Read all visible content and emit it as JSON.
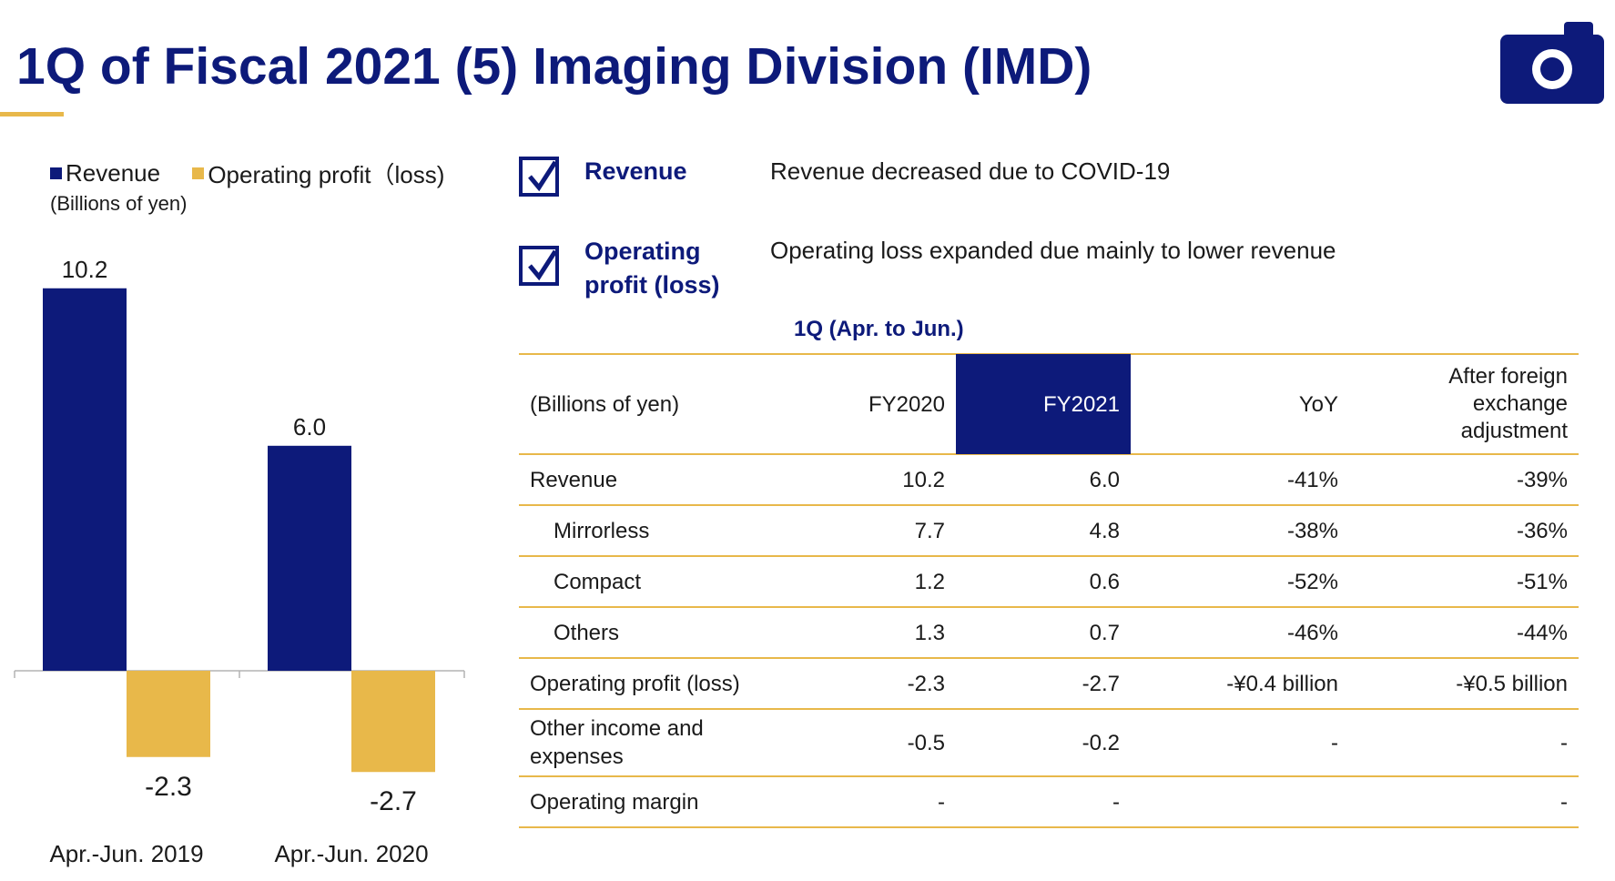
{
  "slide": {
    "title": "1Q of Fiscal 2021 (5) Imaging Division (IMD)"
  },
  "legend": {
    "revenue": "Revenue",
    "operating": "Operating profit（loss)",
    "units": "(Billions of yen)"
  },
  "colors": {
    "navy": "#0d1a7a",
    "gold": "#e8b84a"
  },
  "chart_data": {
    "type": "bar",
    "categories": [
      "Apr.-Jun. 2019",
      "Apr.-Jun. 2020"
    ],
    "series": [
      {
        "name": "Revenue",
        "values": [
          10.2,
          6.0
        ],
        "labels": [
          "10.2",
          "6.0"
        ]
      },
      {
        "name": "Operating profit（loss)",
        "values": [
          -2.3,
          -2.7
        ],
        "labels": [
          "-2.3",
          "-2.7"
        ]
      }
    ],
    "ylabel": "(Billions of yen)",
    "ylim": [
      -3.5,
      10.2
    ],
    "grid": false,
    "legend": "top-left"
  },
  "checks": [
    {
      "label": "Revenue",
      "desc": "Revenue decreased due to COVID-19"
    },
    {
      "label": "Operating profit (loss)",
      "desc": "Operating loss expanded due mainly to lower revenue"
    }
  ],
  "table": {
    "period": "1Q (Apr. to Jun.)",
    "headers": [
      "(Billions of yen)",
      "FY2020",
      "FY2021",
      "YoY",
      "After foreign exchange adjustment"
    ],
    "rows": [
      [
        "Revenue",
        "10.2",
        "6.0",
        "-41%",
        "-39%"
      ],
      [
        "Mirrorless",
        "7.7",
        "4.8",
        "-38%",
        "-36%"
      ],
      [
        "Compact",
        "1.2",
        "0.6",
        "-52%",
        "-51%"
      ],
      [
        "Others",
        "1.3",
        "0.7",
        "-46%",
        "-44%"
      ],
      [
        "Operating profit (loss)",
        "-2.3",
        "-2.7",
        "-¥0.4 billion",
        "-¥0.5 billion"
      ],
      [
        "Other income and expenses",
        "-0.5",
        "-0.2",
        "-",
        "-"
      ],
      [
        "Operating margin",
        "-",
        "-",
        "",
        "-"
      ]
    ]
  }
}
